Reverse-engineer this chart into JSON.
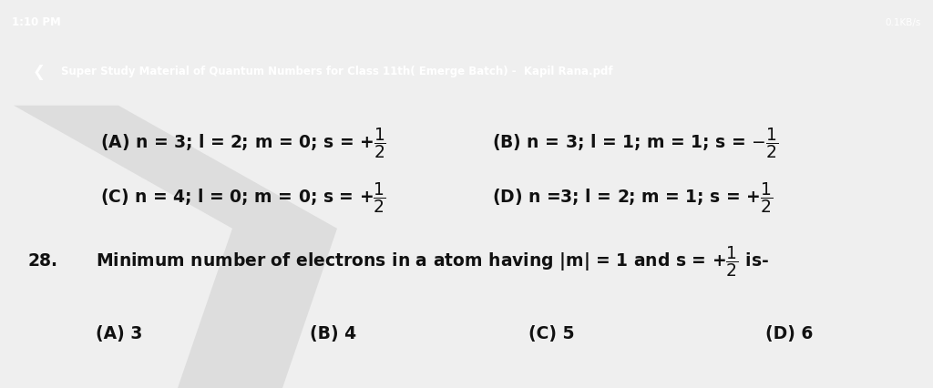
{
  "bg_top": "#323232",
  "bg_main": "#efefef",
  "status_bar_text": "1:10 PM",
  "status_bar_right": "0.1KB/s",
  "header_text": "Super Study Material of Quantum Numbers for Class 11th( Emerge Batch) -  Kapil Rana.pdf",
  "header_arrow": "❮",
  "optionA_text": "(A) n = 3; l = 2; m = 0; s = +$\\dfrac{1}{2}$",
  "optionB_text": "(B) n = 3; l = 1; m = 1; s = $-\\dfrac{1}{2}$",
  "optionC_text": "(C) n = 4; l = 0; m = 0; s = +$\\dfrac{1}{2}$",
  "optionD_text": "(D) n =3; l = 2; m = 1; s = +$\\dfrac{1}{2}$",
  "q28_text": "Minimum number of electrons in a atom having |m| = 1 and s = +$\\dfrac{1}{2}$ is-",
  "q28_num": "28.",
  "ans_A": "(A) 3",
  "ans_B": "(B) 4",
  "ans_C": "(C) 5",
  "ans_D": "(D) 6",
  "wm_color": "#c0c0c0",
  "header_bg": "#2e2e2e",
  "statusbar_bg": "#1e1e1e"
}
